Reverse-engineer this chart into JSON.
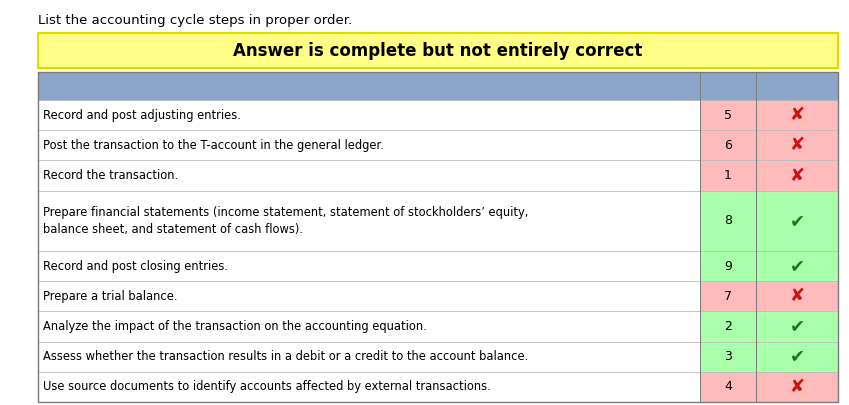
{
  "title_text": "List the accounting cycle steps in proper order.",
  "banner_text": "Answer is complete but not entirely correct",
  "banner_bg": "#ffff88",
  "banner_border": "#dddd00",
  "banner_text_color": "#000000",
  "header_bg": "#8da5c8",
  "rows": [
    {
      "text": "Record and post adjusting entries.",
      "number": "5",
      "correct": false,
      "text_bg": "#ffffff",
      "num_bg": "#ffbbbb",
      "check_bg": "#ffbbbb"
    },
    {
      "text": "Post the transaction to the T-account in the general ledger.",
      "number": "6",
      "correct": false,
      "text_bg": "#ffffff",
      "num_bg": "#ffbbbb",
      "check_bg": "#ffbbbb"
    },
    {
      "text": "Record the transaction.",
      "number": "1",
      "correct": false,
      "text_bg": "#ffffff",
      "num_bg": "#ffbbbb",
      "check_bg": "#ffbbbb"
    },
    {
      "text": "Prepare financial statements (income statement, statement of stockholders’ equity,\nbalance sheet, and statement of cash flows).",
      "number": "8",
      "correct": true,
      "text_bg": "#ffffff",
      "num_bg": "#aaffaa",
      "check_bg": "#aaffaa"
    },
    {
      "text": "Record and post closing entries.",
      "number": "9",
      "correct": true,
      "text_bg": "#ffffff",
      "num_bg": "#aaffaa",
      "check_bg": "#aaffaa"
    },
    {
      "text": "Prepare a trial balance.",
      "number": "7",
      "correct": false,
      "text_bg": "#ffffff",
      "num_bg": "#ffbbbb",
      "check_bg": "#ffbbbb"
    },
    {
      "text": "Analyze the impact of the transaction on the accounting equation.",
      "number": "2",
      "correct": true,
      "text_bg": "#ffffff",
      "num_bg": "#aaffaa",
      "check_bg": "#aaffaa"
    },
    {
      "text": "Assess whether the transaction results in a debit or a credit to the account balance.",
      "number": "3",
      "correct": true,
      "text_bg": "#ffffff",
      "num_bg": "#aaffaa",
      "check_bg": "#aaffaa"
    },
    {
      "text": "Use source documents to identify accounts affected by external transactions.",
      "number": "4",
      "correct": false,
      "text_bg": "#ffffff",
      "num_bg": "#ffbbbb",
      "check_bg": "#ffbbbb"
    }
  ],
  "fig_width": 8.49,
  "fig_height": 4.05,
  "dpi": 100
}
